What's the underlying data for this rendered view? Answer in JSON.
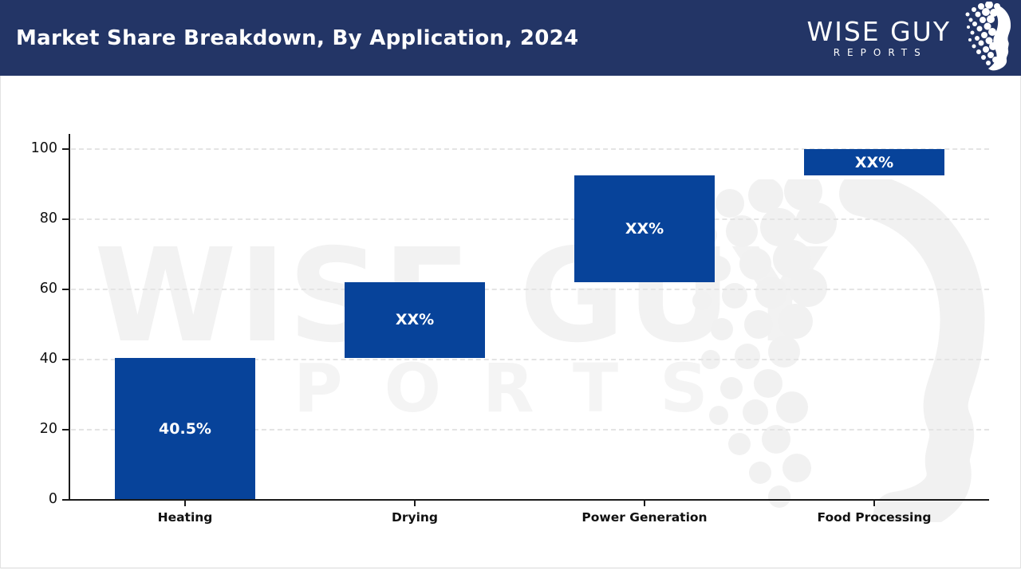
{
  "header": {
    "title": "Market Share Breakdown, By Application, 2024",
    "bg_color": "#233566",
    "logo": {
      "line1": "WISE GUY",
      "line2": "REPORTS"
    }
  },
  "watermark": {
    "line1": "WISE GUY",
    "line2": "PORTS"
  },
  "chart_data": {
    "type": "bar",
    "subtype": "waterfall",
    "title": "Market Share Breakdown, By Application, 2024",
    "categories": [
      "Heating",
      "Drying",
      "Power Generation",
      "Food Processing"
    ],
    "segments": [
      {
        "category": "Heating",
        "start": 0,
        "end": 40.5,
        "label": "40.5%"
      },
      {
        "category": "Drying",
        "start": 40.5,
        "end": 62,
        "label": "XX%"
      },
      {
        "category": "Power Generation",
        "start": 62,
        "end": 92.5,
        "label": "XX%"
      },
      {
        "category": "Food Processing",
        "start": 92.5,
        "end": 100,
        "label": "XX%"
      }
    ],
    "y_ticks": [
      0,
      20,
      40,
      60,
      80,
      100
    ],
    "ylim": [
      0,
      105
    ],
    "xlabel": "",
    "ylabel": "",
    "bar_color": "#07439a",
    "grid": "horizontal-dashed",
    "legend": "none"
  }
}
